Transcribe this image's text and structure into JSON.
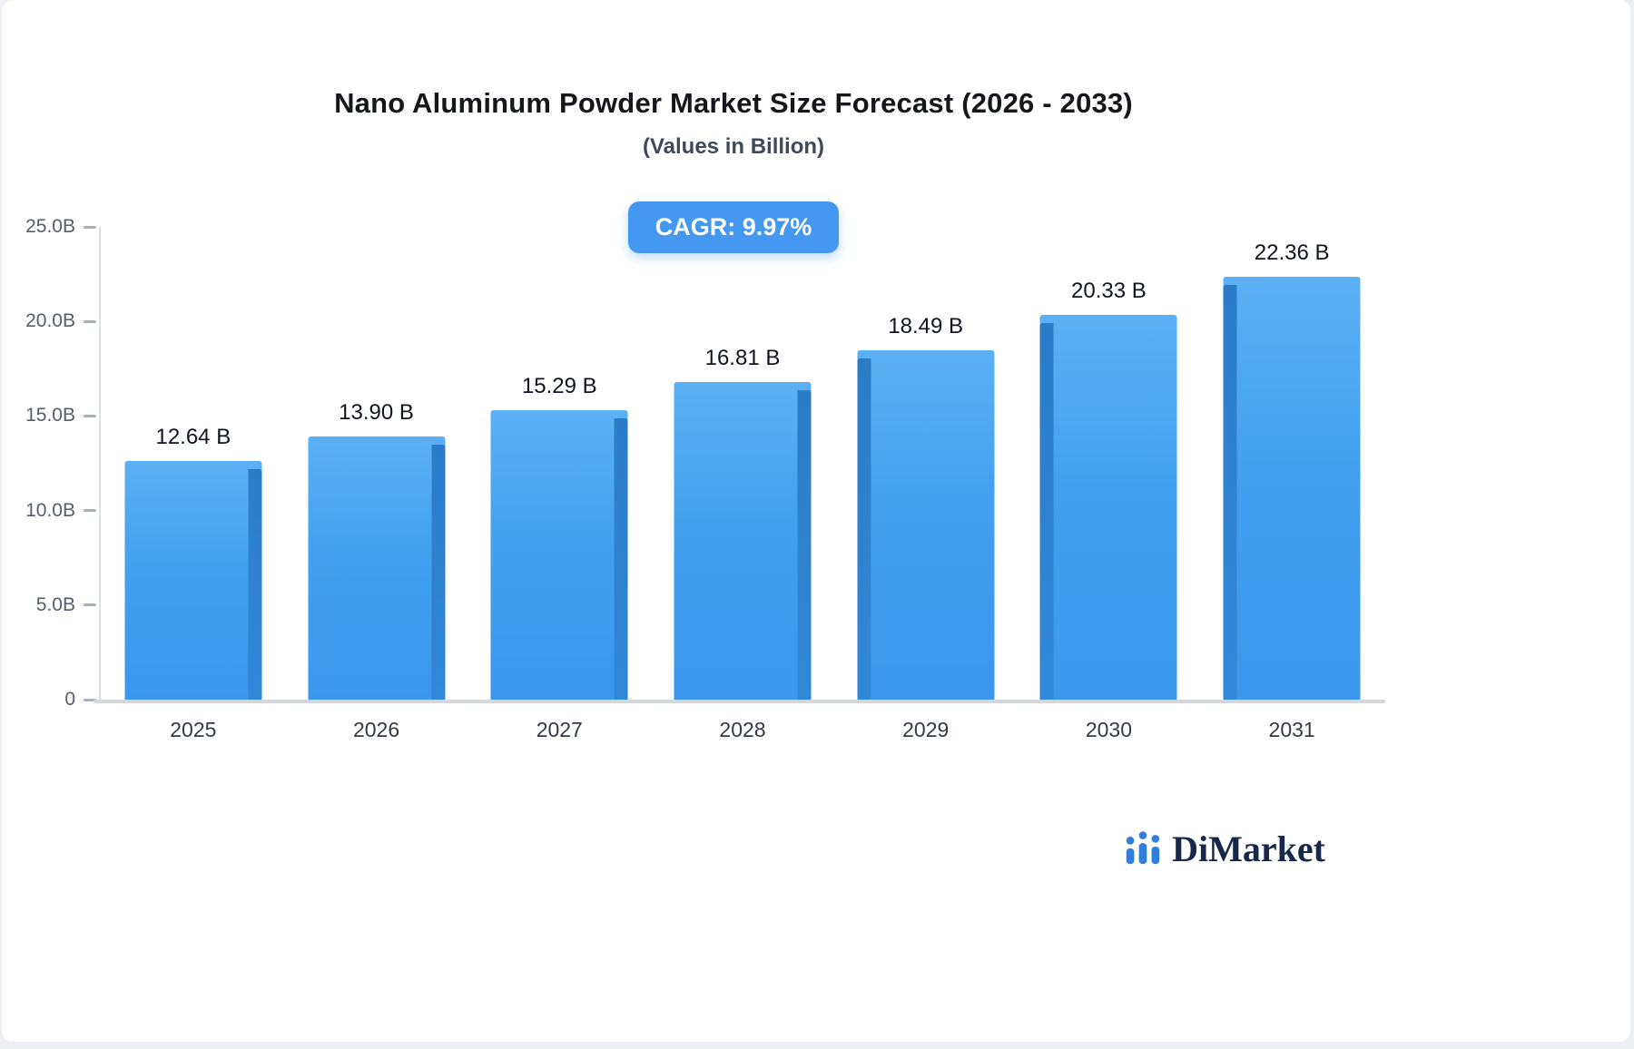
{
  "title": "Nano Aluminum Powder Market Size Forecast (2026 - 2033)",
  "subtitle": "(Values in Billion)",
  "badge": {
    "label": "CAGR: 9.97%"
  },
  "logo": {
    "text": "DiMarket"
  },
  "chart_data": {
    "type": "bar",
    "title": "Nano Aluminum Powder Market Size Forecast (2026 - 2033)",
    "subtitle": "(Values in Billion)",
    "categories": [
      "2025",
      "2026",
      "2027",
      "2028",
      "2029",
      "2030",
      "2031"
    ],
    "values": [
      12.64,
      13.9,
      15.29,
      16.81,
      18.49,
      20.33,
      22.36
    ],
    "value_labels": [
      "12.64 B",
      "13.90 B",
      "15.29 B",
      "16.81 B",
      "18.49 B",
      "20.33 B",
      "22.36 B"
    ],
    "xlabel": "",
    "ylabel": "",
    "ylim": [
      0,
      25
    ],
    "yticks": [
      {
        "value": 25,
        "label": "25.0B"
      },
      {
        "value": 20,
        "label": "20.0B"
      },
      {
        "value": 15,
        "label": "15.0B"
      },
      {
        "value": 10,
        "label": "10.0B"
      },
      {
        "value": 5,
        "label": "5.0B"
      },
      {
        "value": 0,
        "label": "0"
      }
    ],
    "grid": false,
    "legend": false,
    "bar_color": "#42a0ee",
    "bar_edge_color": "#2a7cc7",
    "badge_color": "#4498ef"
  }
}
